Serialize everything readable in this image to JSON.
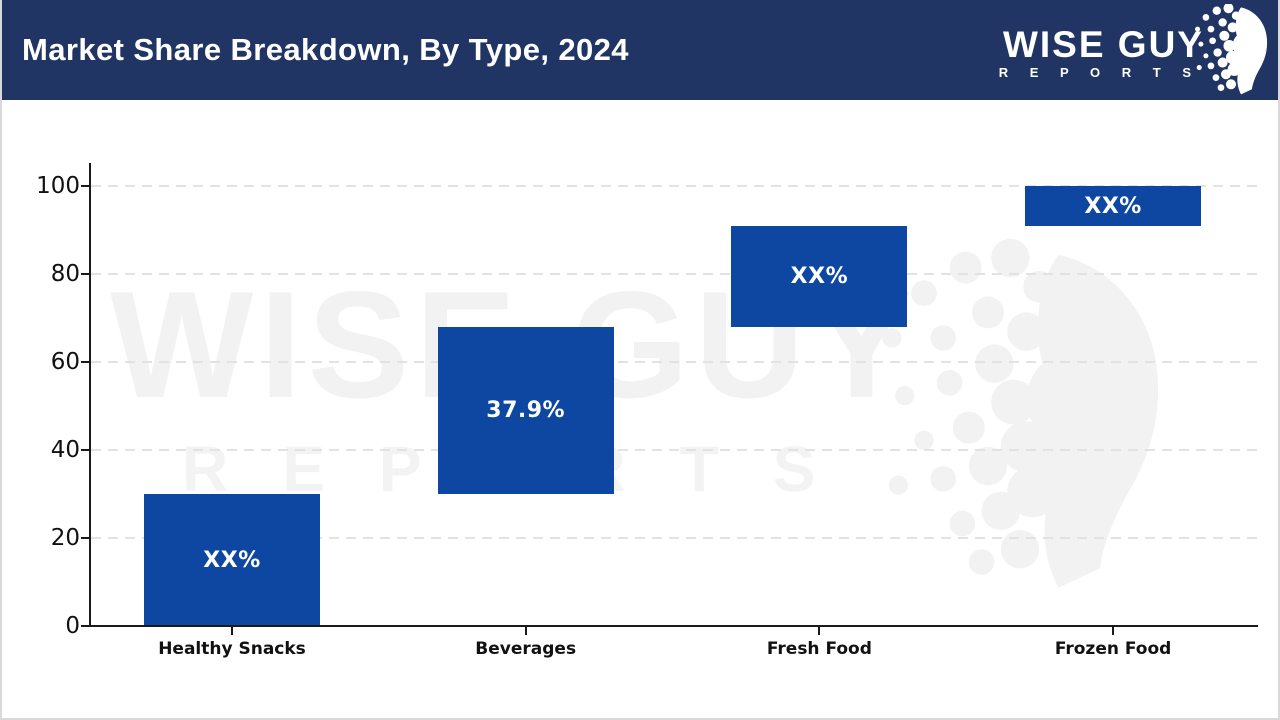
{
  "header": {
    "title": "Market Share Breakdown, By Type, 2024",
    "logo": {
      "line1": "WISE GUY",
      "line2": "R E P O R T S"
    }
  },
  "watermark": {
    "line1": "WISE GUY",
    "line2": "REPORTS"
  },
  "chart_data": {
    "type": "bar",
    "subtype": "waterfall",
    "title": "Market Share Breakdown, By Type, 2024",
    "categories": [
      "Healthy Snacks",
      "Beverages",
      "Fresh Food",
      "Frozen Food"
    ],
    "segments": [
      {
        "category": "Healthy Snacks",
        "start": 0,
        "end": 30,
        "label": "XX%"
      },
      {
        "category": "Beverages",
        "start": 30,
        "end": 67.9,
        "label": "37.9%"
      },
      {
        "category": "Fresh Food",
        "start": 67.9,
        "end": 90.9,
        "label": "XX%"
      },
      {
        "category": "Frozen Food",
        "start": 90.9,
        "end": 100,
        "label": "XX%"
      }
    ],
    "xlabel": "",
    "ylabel": "",
    "ylim": [
      0,
      105
    ],
    "yticks": [
      0,
      20,
      40,
      60,
      80,
      100
    ],
    "grid": "horizontal-dashed",
    "legend": "none",
    "bar_color": "#0d47a1",
    "bar_label_color": "#ffffff"
  },
  "colors": {
    "header_bg": "#213564",
    "bar": "#0d47a1",
    "grid": "#e2e2e2",
    "axis": "#1a1a1a",
    "watermark": "#f2f2f2",
    "page_border": "#d9d9d9"
  }
}
